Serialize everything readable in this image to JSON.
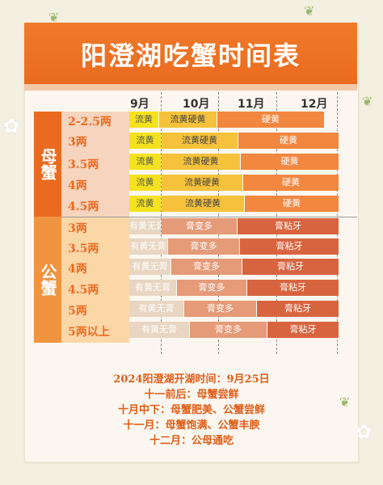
{
  "title": "阳澄湖吃蟹时间表",
  "months": [
    "9月",
    "10月",
    "11月",
    "12月"
  ],
  "groups": {
    "mother": "母蟹",
    "father": "公蟹"
  },
  "mother_rows": [
    {
      "label": "2-2.5两",
      "segments": [
        "流黄",
        "流黄硬黄",
        "硬黄"
      ]
    },
    {
      "label": "3两",
      "segments": [
        "流黄",
        "流黄硬黄",
        "硬黄"
      ]
    },
    {
      "label": "3.5两",
      "segments": [
        "流黄",
        "流黄硬黄",
        "硬黄"
      ]
    },
    {
      "label": "4两",
      "segments": [
        "流黄",
        "流黄硬黄",
        "硬黄"
      ]
    },
    {
      "label": "4.5两",
      "segments": [
        "流黄",
        "流黄硬黄",
        "硬黄"
      ]
    }
  ],
  "father_rows": [
    {
      "label": "3两",
      "segments": [
        "有黄无膏",
        "膏变多",
        "膏粘牙"
      ]
    },
    {
      "label": "3.5两",
      "segments": [
        "有黄无膏",
        "膏变多",
        "膏粘牙"
      ]
    },
    {
      "label": "4两",
      "segments": [
        "有黄无膏",
        "膏变多",
        "膏粘牙"
      ]
    },
    {
      "label": "4.5两",
      "segments": [
        "有黄无膏",
        "膏变多",
        "膏粘牙"
      ]
    },
    {
      "label": "5两",
      "segments": [
        "有黄无膏",
        "膏变多",
        "膏粘牙"
      ]
    },
    {
      "label": "5两以上",
      "segments": [
        "有黄无膏",
        "膏变多",
        "膏粘牙"
      ]
    }
  ],
  "notes": [
    "2024阳澄湖开湖时间：9月25日",
    "十一前后：母蟹尝鲜",
    "十月中下：母蟹肥美、公蟹尝鲜",
    "十一月：母蟹饱满、公蟹丰腴",
    "十二月：公母通吃"
  ],
  "colors": {
    "header": "#ea6b1f",
    "liu": "#f4e21c",
    "liu_ying": "#f6c23b",
    "ying": "#f28740",
    "father_1": "#e8d6c2",
    "father_2": "#e59a78",
    "father_3": "#d8643f"
  }
}
